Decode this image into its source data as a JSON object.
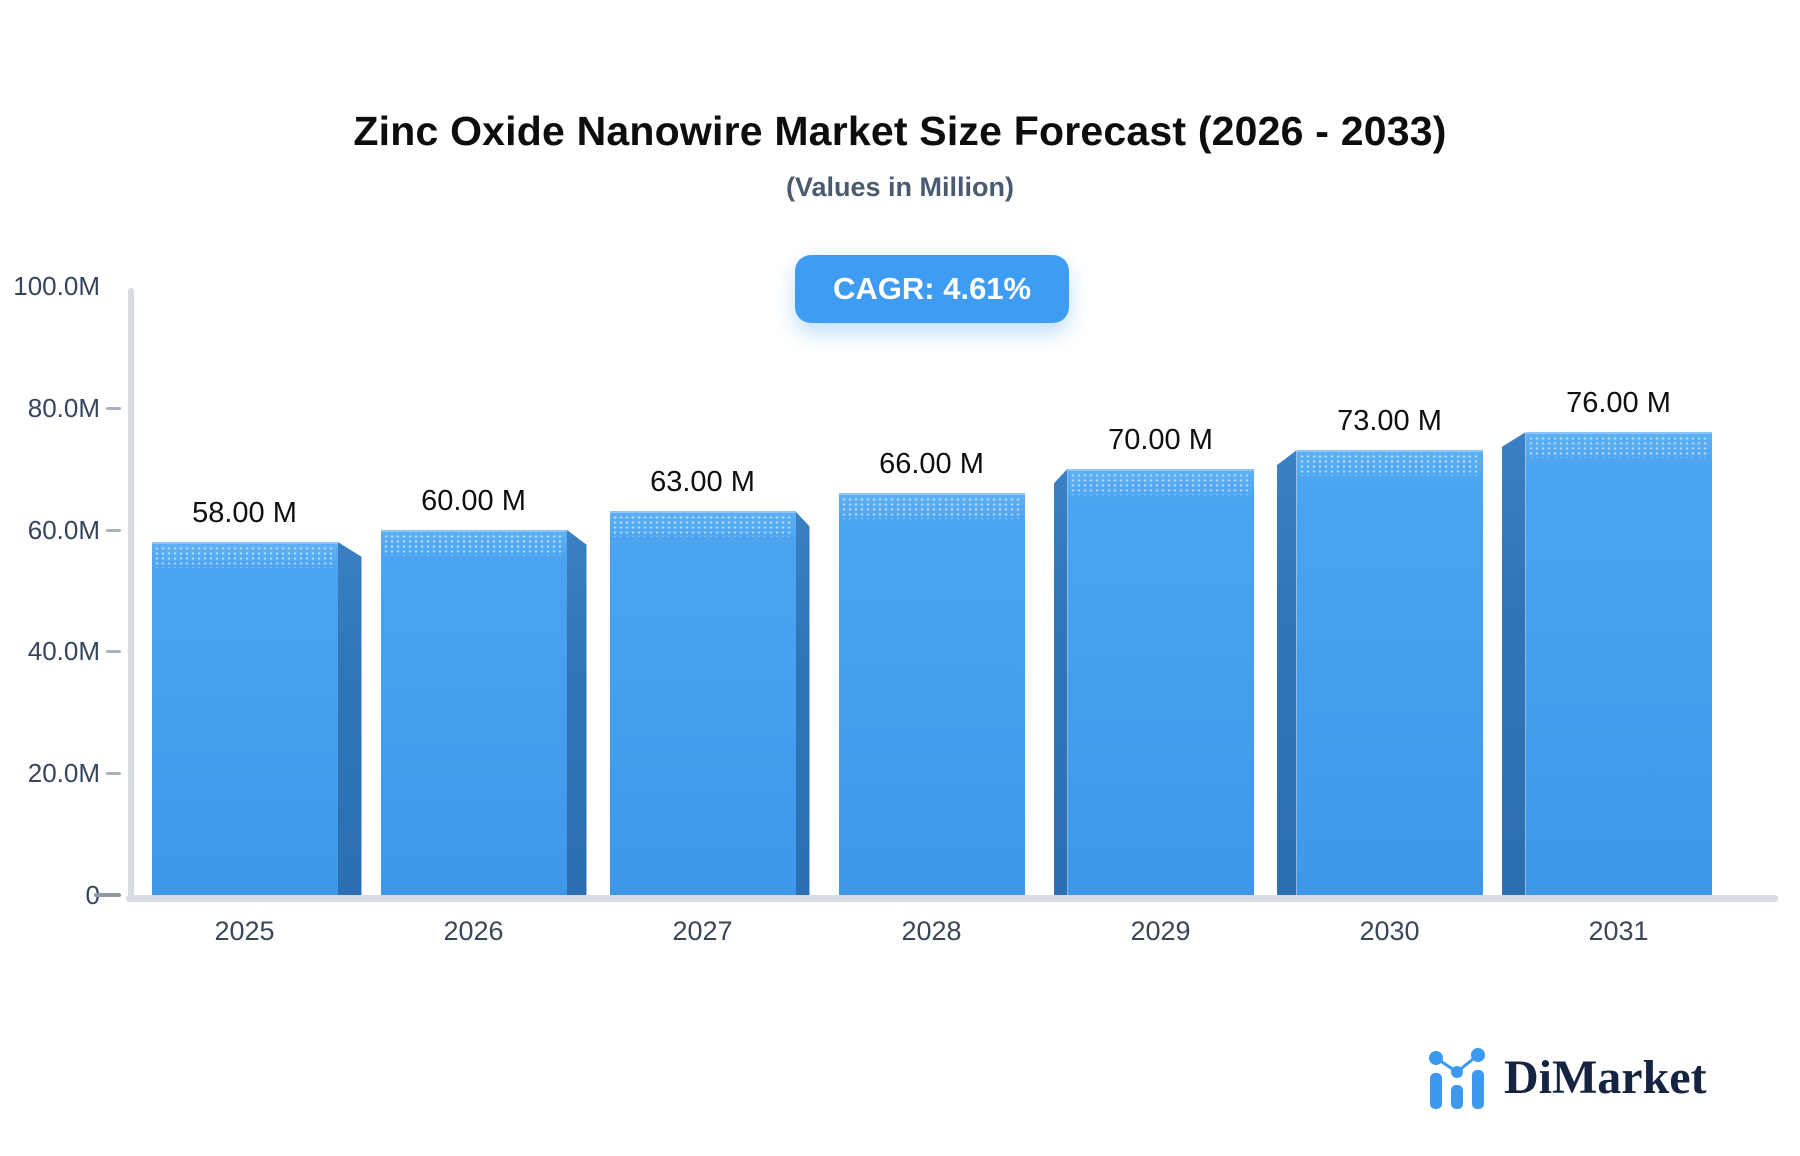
{
  "header": {
    "title": "Zinc Oxide Nanowire Market Size Forecast (2026 - 2033)",
    "subtitle": "(Values in Million)"
  },
  "badge": {
    "label": "CAGR: 4.61%"
  },
  "chart_data": {
    "type": "bar",
    "title": "Zinc Oxide Nanowire Market Size Forecast (2026 - 2033)",
    "subtitle": "(Values in Million)",
    "categories": [
      "2025",
      "2026",
      "2027",
      "2028",
      "2029",
      "2030",
      "2031"
    ],
    "values": [
      58,
      60,
      63,
      66,
      70,
      73,
      76
    ],
    "value_labels": [
      "58.00 M",
      "60.00 M",
      "63.00 M",
      "66.00 M",
      "70.00 M",
      "73.00 M",
      "76.00 M"
    ],
    "xlabel": "",
    "ylabel": "",
    "ylim": [
      0,
      100
    ],
    "y_ticks": [
      {
        "label": "100.0M",
        "value": 100
      },
      {
        "label": "80.0M",
        "value": 80
      },
      {
        "label": "60.0M",
        "value": 60
      },
      {
        "label": "40.0M",
        "value": 40
      },
      {
        "label": "20.0M",
        "value": 20
      },
      {
        "label": "0",
        "value": 0
      }
    ],
    "grid": false,
    "legend": false,
    "annotations": [
      "CAGR: 4.61%"
    ],
    "colors": {
      "bar_face": "#449ded",
      "bar_face_top_highlight": "#8cc6f8",
      "bar_side_3d": "#2f74b9",
      "badge_background": "#3f9cf3",
      "axis_line": "#d8dce2",
      "axis_label_text": "#35455e",
      "value_label_text": "#0e0f11",
      "title_text": "#0c0d0f",
      "subtitle_text": "#4a5a70"
    }
  },
  "logo": {
    "text": "DiMarket",
    "icon": "bar-chart-logo-icon",
    "text_color": "#152441",
    "icon_color": "#3b9af0"
  }
}
